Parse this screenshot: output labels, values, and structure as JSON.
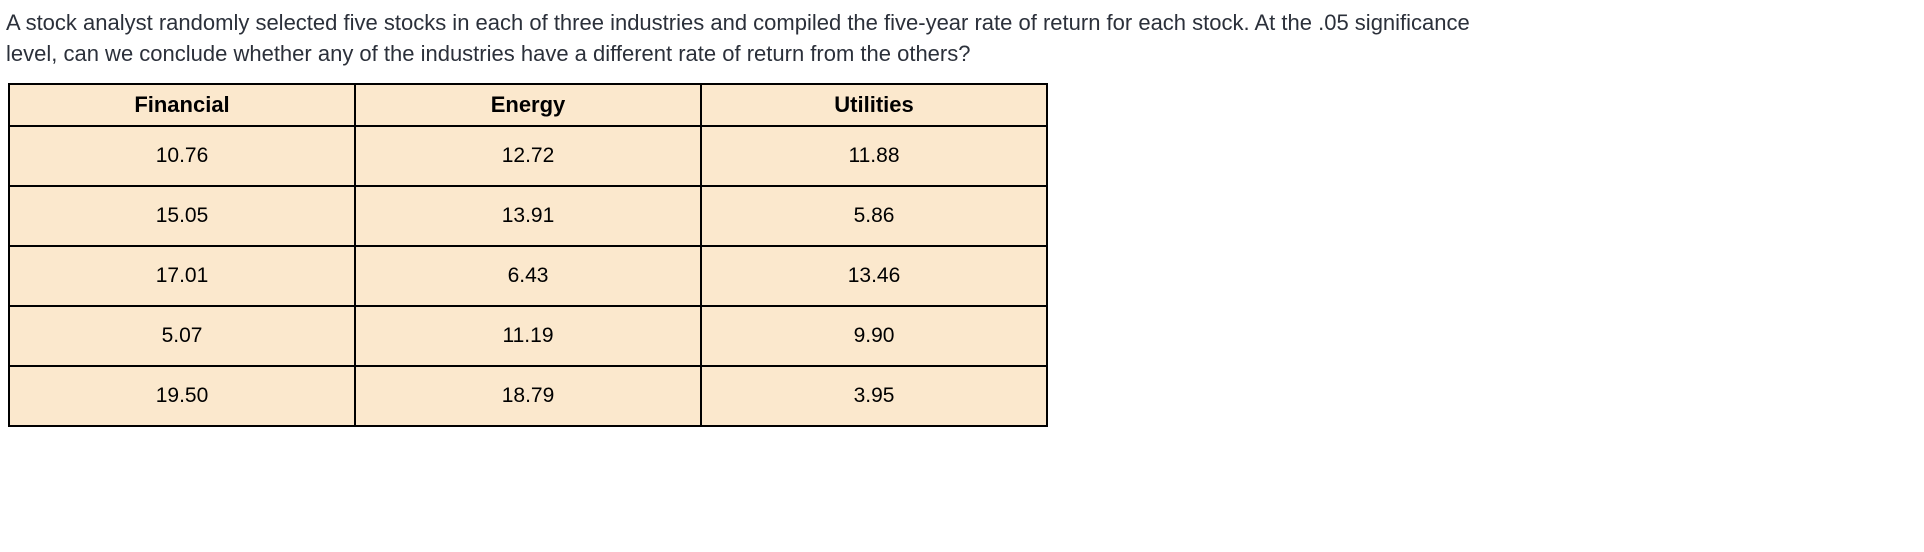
{
  "question": {
    "text": "A stock analyst randomly selected five stocks in each of three industries and compiled the five-year rate of return for each stock. At the .05 significance level, can we conclude whether any of the industries have a different rate of return from the others?"
  },
  "table": {
    "headers": [
      "Financial",
      "Energy",
      "Utilities"
    ],
    "rows": [
      [
        "10.76",
        "12.72",
        "11.88"
      ],
      [
        "15.05",
        "13.91",
        "5.86"
      ],
      [
        "17.01",
        "6.43",
        "13.46"
      ],
      [
        "5.07",
        "11.19",
        "9.90"
      ],
      [
        "19.50",
        "18.79",
        "3.95"
      ]
    ],
    "cell_background": "#fbe8cd",
    "border_color": "#000000"
  }
}
